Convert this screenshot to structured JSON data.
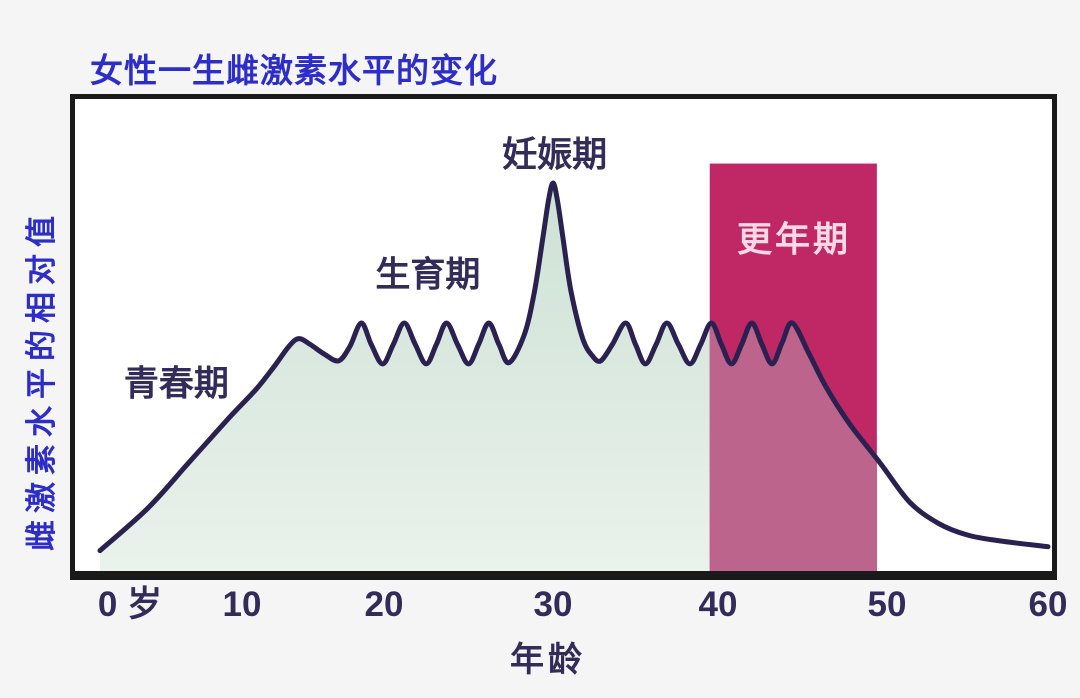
{
  "page": {
    "background": "#f5f5f6"
  },
  "chart_data": {
    "type": "area",
    "title": "女性一生雌激素水平的变化",
    "xlabel": "年龄",
    "ylabel": "雌激素水平的相对值",
    "x_range": [
      0,
      60
    ],
    "grid": false,
    "x_ticks": [
      {
        "label": "0 岁",
        "age": 0
      },
      {
        "label": "10",
        "age": 10
      },
      {
        "label": "20",
        "age": 20
      },
      {
        "label": "30",
        "age": 30
      },
      {
        "label": "40",
        "age": 40
      },
      {
        "label": "50",
        "age": 50
      },
      {
        "label": "60",
        "age": 60
      }
    ],
    "annotations": [
      {
        "id": "puberty",
        "text": "青春期",
        "age": 5.1,
        "level": 48
      },
      {
        "id": "reproductive",
        "text": "生育期",
        "age": 22.6,
        "level": 76
      },
      {
        "id": "pregnancy",
        "text": "妊娠期",
        "age": 30.1,
        "level": 107
      },
      {
        "id": "menopause",
        "text": "更年期",
        "age": 44.5,
        "level": 85
      }
    ],
    "menopause_band": {
      "from_age": 39.5,
      "to_age": 49.4,
      "top_level": 105
    },
    "colors": {
      "title_text": "#2d2dc8",
      "axis_text": "#332b58",
      "curve_line": "#2b2150",
      "area_fill_top": "#cde1d4",
      "area_fill_bottom": "#eaf2ec",
      "menopause_band": "#c02765",
      "band_area_overlap": "#bd648c",
      "menopause_text": "#fbd9e7",
      "plot_background": "#ffffff",
      "border": "#1a1a1a"
    },
    "curve_points": [
      [
        -0.6,
        5.5
      ],
      [
        3,
        16.5
      ],
      [
        6,
        28
      ],
      [
        9,
        39.5
      ],
      [
        11,
        47
      ],
      [
        12.3,
        53
      ],
      [
        13.3,
        58
      ],
      [
        14,
        60
      ],
      [
        14.8,
        58.5
      ],
      [
        15.8,
        56
      ],
      [
        16.8,
        54.3
      ],
      [
        17.6,
        58
      ],
      [
        18.4,
        64
      ],
      [
        19.1,
        58.5
      ],
      [
        19.9,
        53.5
      ],
      [
        20.55,
        58.5
      ],
      [
        21.2,
        64
      ],
      [
        21.85,
        58.5
      ],
      [
        22.5,
        53.5
      ],
      [
        23.1,
        58.5
      ],
      [
        23.7,
        64
      ],
      [
        24.35,
        58.5
      ],
      [
        25,
        53.5
      ],
      [
        25.6,
        58.5
      ],
      [
        26.2,
        64
      ],
      [
        26.8,
        58.5
      ],
      [
        27.4,
        53.8
      ],
      [
        28.3,
        61
      ],
      [
        28.9,
        72
      ],
      [
        29.4,
        86
      ],
      [
        29.75,
        96
      ],
      [
        30,
        100
      ],
      [
        30.25,
        96
      ],
      [
        30.6,
        86
      ],
      [
        31.1,
        72
      ],
      [
        31.8,
        60
      ],
      [
        32.4,
        55.5
      ],
      [
        32.9,
        54.3
      ],
      [
        33.6,
        58.5
      ],
      [
        34.4,
        64
      ],
      [
        35,
        58.5
      ],
      [
        35.6,
        53.5
      ],
      [
        36.25,
        58.5
      ],
      [
        36.9,
        64
      ],
      [
        37.6,
        58.5
      ],
      [
        38.3,
        53.5
      ],
      [
        38.95,
        58.5
      ],
      [
        39.6,
        64
      ],
      [
        40.2,
        58.5
      ],
      [
        40.8,
        53.5
      ],
      [
        41.4,
        58.5
      ],
      [
        42,
        64
      ],
      [
        42.6,
        58.5
      ],
      [
        43.2,
        53.5
      ],
      [
        43.8,
        59
      ],
      [
        44.4,
        64
      ],
      [
        45.4,
        56
      ],
      [
        46.4,
        47.5
      ],
      [
        47.8,
        38
      ],
      [
        49.6,
        28
      ],
      [
        51.4,
        18
      ],
      [
        53.2,
        12.5
      ],
      [
        55,
        9.5
      ],
      [
        57,
        8
      ],
      [
        60,
        6.5
      ]
    ]
  }
}
